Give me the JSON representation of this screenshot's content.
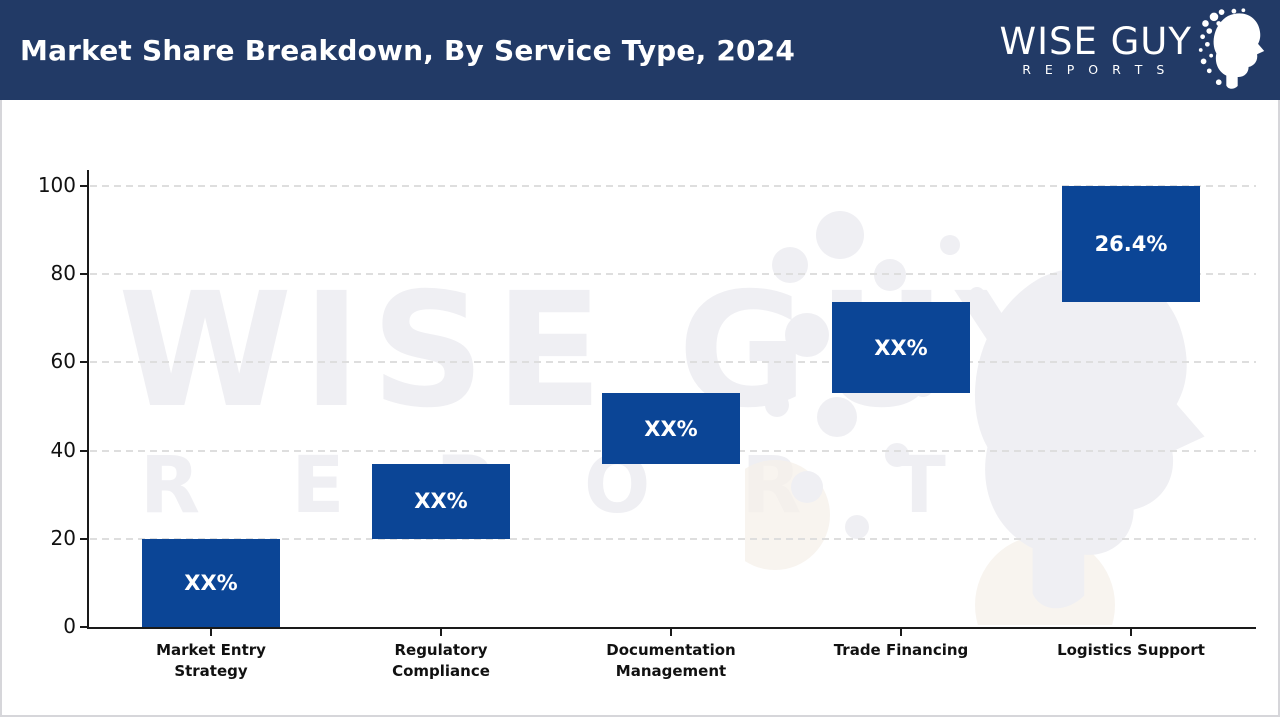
{
  "header": {
    "title": "Market Share Breakdown, By Service Type, 2024",
    "logo": {
      "line1": "WISE GUY",
      "line2": "R E P O R T S"
    }
  },
  "watermark": {
    "line1": "WISE GUY",
    "line2": "R E P O R T S"
  },
  "colors": {
    "header_bg": "#223A66",
    "bar_fill": "#0B4596",
    "bar_label": "#FFFFFF",
    "grid": "#DEDEDE",
    "axis": "#1A1A1A",
    "text": "#111111",
    "watermark": "#EFEFF3",
    "watermark_warm": "#F6F0EA",
    "border": "#D6D6DA"
  },
  "chart_data": {
    "type": "bar",
    "subtype": "waterfall",
    "title": "Market Share Breakdown, By Service Type, 2024",
    "categories": [
      "Market Entry Strategy",
      "Regulatory Compliance",
      "Documentation Management",
      "Trade Financing",
      "Logistics Support"
    ],
    "y_ticks": [
      0,
      20,
      40,
      60,
      80,
      100
    ],
    "ylim": [
      0,
      104
    ],
    "grid": "horizontal-dashed",
    "legend": null,
    "bars": [
      {
        "category": "Market Entry Strategy",
        "category_lines": [
          "Market Entry",
          "Strategy"
        ],
        "label": "XX%",
        "start": 0,
        "end": 20,
        "value": 20
      },
      {
        "category": "Regulatory Compliance",
        "category_lines": [
          "Regulatory",
          "Compliance"
        ],
        "label": "XX%",
        "start": 20,
        "end": 37,
        "value": 17
      },
      {
        "category": "Documentation Management",
        "category_lines": [
          "Documentation",
          "Management"
        ],
        "label": "XX%",
        "start": 37,
        "end": 53,
        "value": 16
      },
      {
        "category": "Trade Financing",
        "category_lines": [
          "Trade Financing"
        ],
        "label": "XX%",
        "start": 53,
        "end": 73.6,
        "value": 20.6
      },
      {
        "category": "Logistics Support",
        "category_lines": [
          "Logistics Support"
        ],
        "label": "26.4%",
        "start": 73.6,
        "end": 100,
        "value": 26.4
      }
    ]
  }
}
